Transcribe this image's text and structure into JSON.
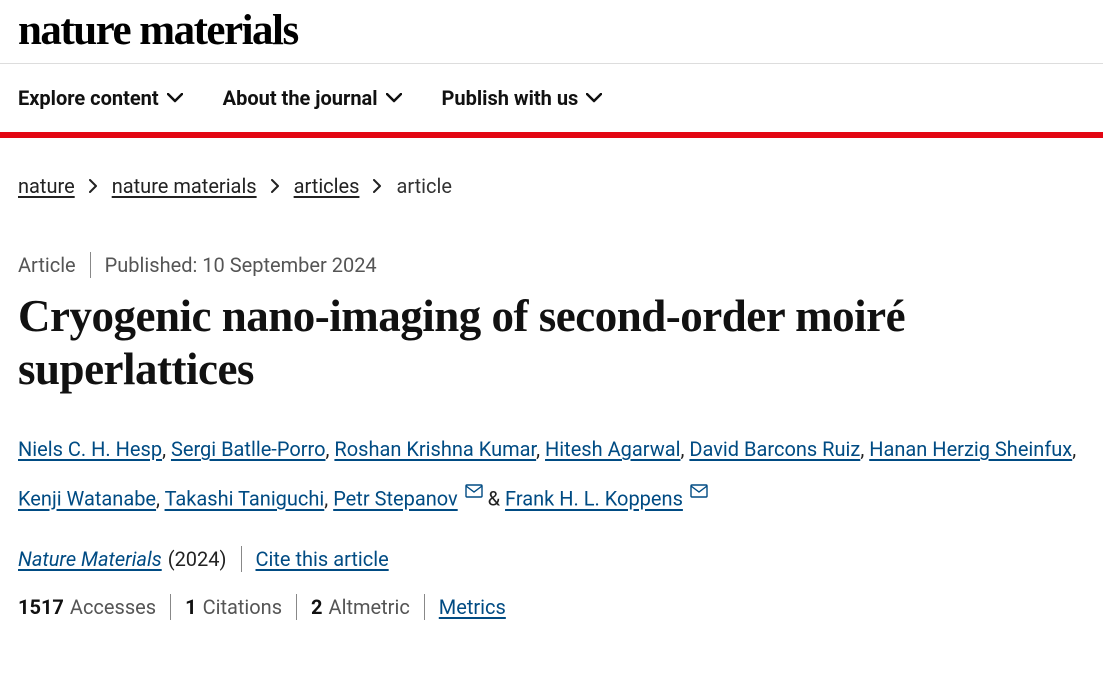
{
  "logo": "nature materials",
  "nav": [
    {
      "label": "Explore content"
    },
    {
      "label": "About the journal"
    },
    {
      "label": "Publish with us"
    }
  ],
  "accent_color": "#e30613",
  "breadcrumb": {
    "items": [
      {
        "label": "nature",
        "link": true
      },
      {
        "label": "nature materials",
        "link": true
      },
      {
        "label": "articles",
        "link": true
      },
      {
        "label": "article",
        "link": false
      }
    ]
  },
  "article": {
    "type": "Article",
    "published_prefix": "Published: ",
    "published_date": "10 September 2024",
    "title": "Cryogenic nano-imaging of second-order moiré superlattices",
    "authors": [
      {
        "name": "Niels C. H. Hesp",
        "mail": false
      },
      {
        "name": "Sergi Batlle-Porro",
        "mail": false
      },
      {
        "name": "Roshan Krishna Kumar",
        "mail": false
      },
      {
        "name": "Hitesh Agarwal",
        "mail": false
      },
      {
        "name": "David Barcons Ruiz",
        "mail": false
      },
      {
        "name": "Hanan Herzig Sheinfux",
        "mail": false
      },
      {
        "name": "Kenji Watanabe",
        "mail": false
      },
      {
        "name": "Takashi Taniguchi",
        "mail": false
      },
      {
        "name": "Petr Stepanov",
        "mail": true
      },
      {
        "name": "Frank H. L. Koppens",
        "mail": true
      }
    ],
    "journal": "Nature Materials",
    "year": "(2024)",
    "cite_label": "Cite this article",
    "metrics": {
      "accesses": "1517",
      "accesses_label": "Accesses",
      "citations": "1",
      "citations_label": "Citations",
      "altmetric": "2",
      "altmetric_label": "Altmetric",
      "metrics_link": "Metrics"
    }
  },
  "colors": {
    "link": "#004b83",
    "text": "#222222",
    "muted": "#555555"
  }
}
